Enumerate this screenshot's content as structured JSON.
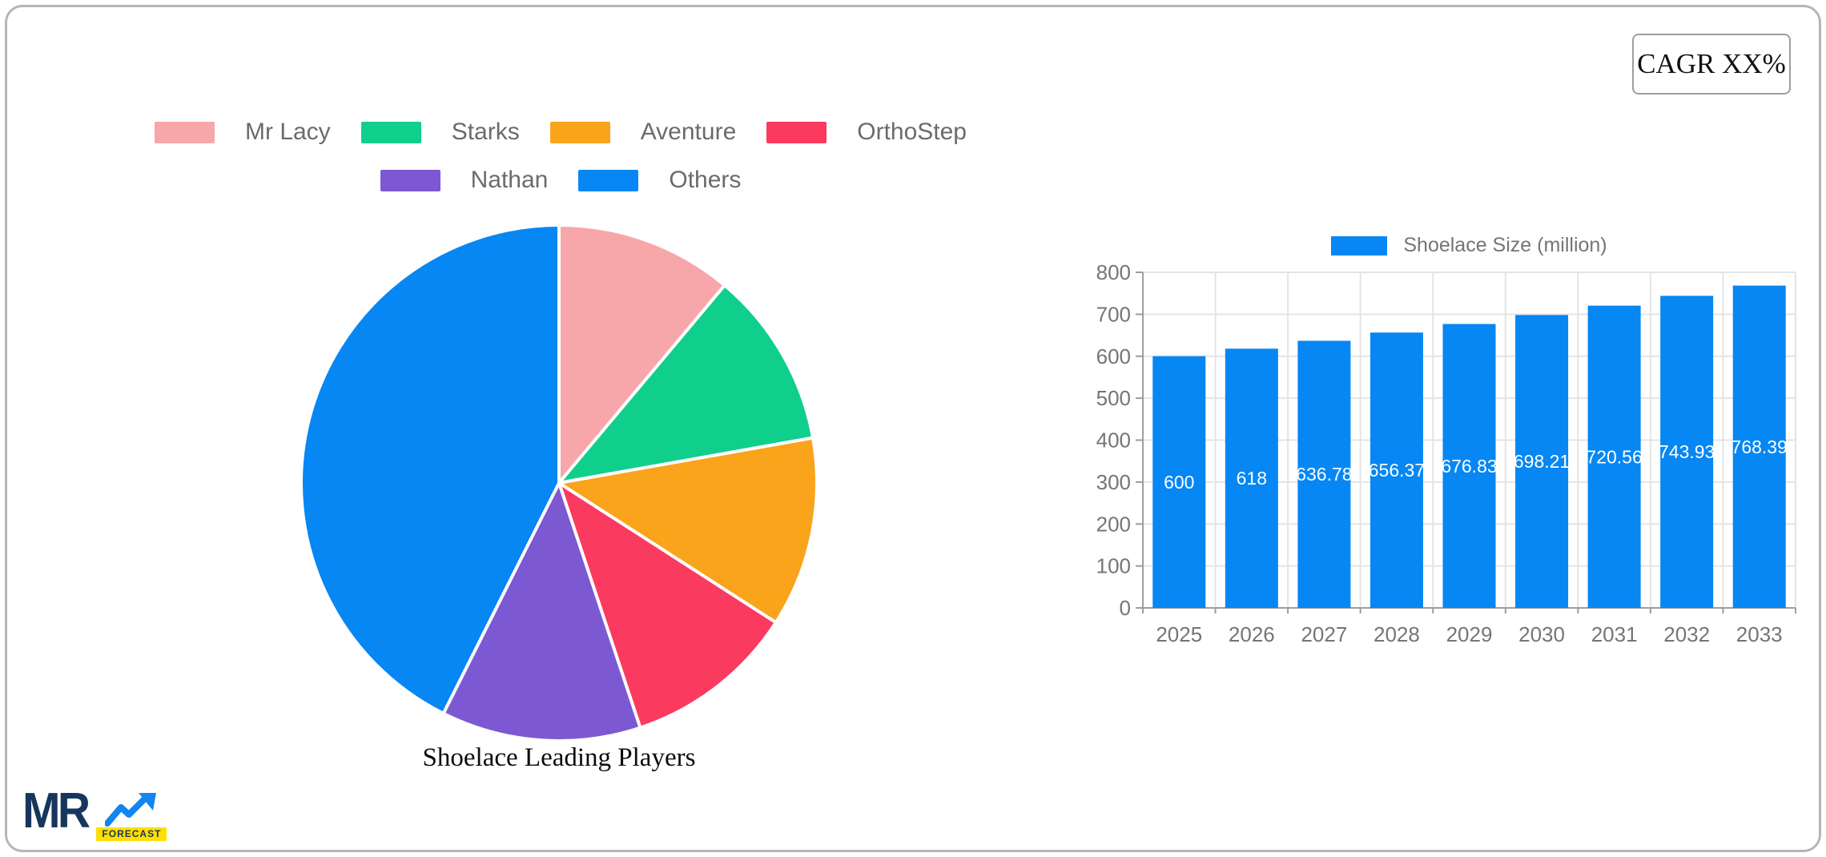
{
  "card": {
    "cagr_label": "CAGR XX%"
  },
  "logo": {
    "mr": "MR",
    "forecast": "FORECAST"
  },
  "colors": {
    "accent_blue": "#0687f3",
    "navy": "#17365d",
    "yellow": "#ffdf00",
    "grid": "#e4e4e4",
    "axis": "#9e9e9e",
    "tick_text": "#757575",
    "legend_text": "#6b6b6b"
  },
  "chart_data": [
    {
      "type": "pie",
      "title": "Shoelace Leading Players",
      "labels": [
        "Mr Lacy",
        "Starks",
        "Aventure",
        "OrthoStep",
        "Nathan",
        "Others"
      ],
      "values": [
        11.1,
        11.1,
        11.9,
        10.8,
        12.5,
        42.6
      ],
      "colors": [
        "#f7a6aa",
        "#10cf8c",
        "#f9a41b",
        "#fb3a5f",
        "#7d58d3",
        "#0687f3"
      ],
      "legend_position": "top",
      "legend_rows": [
        4,
        2
      ],
      "start_angle_deg": 0
    },
    {
      "type": "bar",
      "series_name": "Shoelace Size (million)",
      "categories": [
        "2025",
        "2026",
        "2027",
        "2028",
        "2029",
        "2030",
        "2031",
        "2032",
        "2033"
      ],
      "values": [
        600,
        618,
        636.78,
        656.37,
        676.83,
        698.21,
        720.56,
        743.93,
        768.39
      ],
      "bar_labels": [
        "600",
        "618",
        "636.78",
        "656.37",
        "676.83",
        "698.21",
        "720.56",
        "743.93",
        "768.39"
      ],
      "color": "#0687f3",
      "ylim": [
        0,
        800
      ],
      "ytick_step": 100,
      "grid": true,
      "legend_position": "top"
    }
  ]
}
